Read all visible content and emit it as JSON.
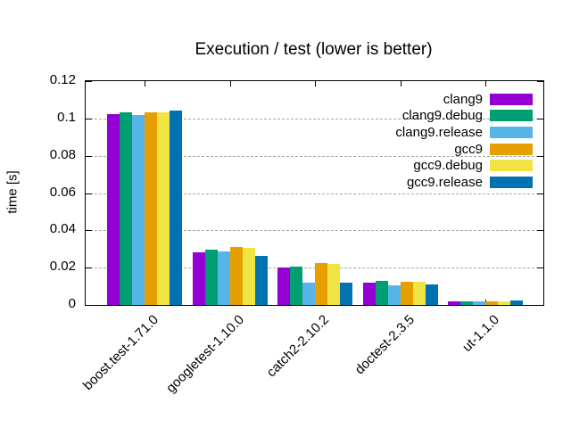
{
  "chart_data": {
    "type": "bar",
    "title": "Execution / test (lower is better)",
    "ylabel": "time [s]",
    "xlabel": "",
    "categories": [
      "boost.test-1.71.0",
      "googletest-1.10.0",
      "catch2-2.10.2",
      "doctest-2.3.5",
      "ut-1.1.0"
    ],
    "series": [
      {
        "name": "clang9",
        "color": "#9400d3",
        "values": [
          0.1025,
          0.028,
          0.02,
          0.012,
          0.002
        ]
      },
      {
        "name": "clang9.debug",
        "color": "#009e73",
        "values": [
          0.1035,
          0.0295,
          0.0205,
          0.013,
          0.002
        ]
      },
      {
        "name": "clang9.release",
        "color": "#56b4e9",
        "values": [
          0.102,
          0.0285,
          0.012,
          0.0105,
          0.002
        ]
      },
      {
        "name": "gcc9",
        "color": "#e69f00",
        "values": [
          0.1035,
          0.031,
          0.0225,
          0.0122,
          0.002
        ]
      },
      {
        "name": "gcc9.debug",
        "color": "#f0e442",
        "values": [
          0.1035,
          0.0305,
          0.0222,
          0.0122,
          0.002
        ]
      },
      {
        "name": "gcc9.release",
        "color": "#0072b2",
        "values": [
          0.104,
          0.0265,
          0.012,
          0.011,
          0.0025
        ]
      }
    ],
    "ylim": [
      0,
      0.12
    ],
    "ytick_step": 0.02,
    "ytick_labels": [
      "0",
      "0.02",
      "0.04",
      "0.06",
      "0.08",
      "0.1",
      "0.12"
    ],
    "grid": true,
    "legend_position": "top-right",
    "axis_color": "#000000",
    "grid_color": "#a8a8a8",
    "background": "#ffffff"
  }
}
